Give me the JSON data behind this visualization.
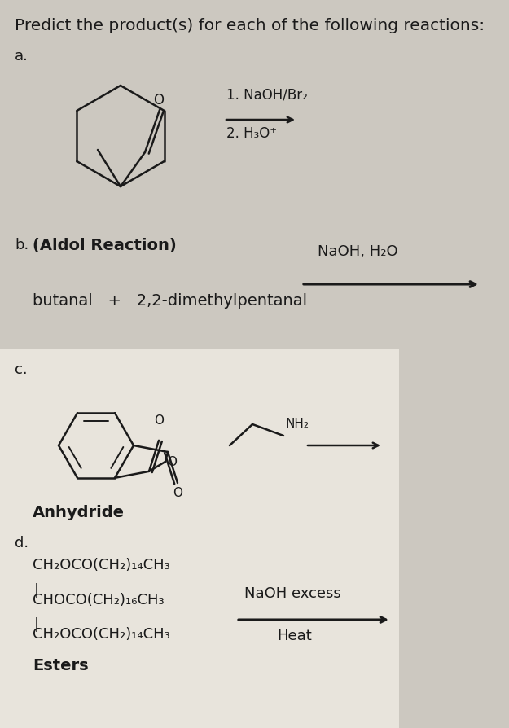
{
  "bg_color": "#c8c4bc",
  "bg_color_top": "#c8c4bc",
  "bg_color_box_c": "#e0dcd4",
  "bg_color_box_d": "#e0dcd4",
  "title": "Predict the product(s) for each of the following reactions:",
  "section_a_label": "a.",
  "section_b_label": "b.",
  "section_c_label": "c.",
  "section_d_label": "d.",
  "reaction_a_line1": "1. NaOH/Br₂",
  "reaction_a_line2": "2. H₃O⁺",
  "reaction_b_header": "(Aldol Reaction)",
  "reaction_b_reactants": "butanal   +   2,2-dimethylpentanal",
  "reaction_b_conditions_top": "NaOH, H₂O",
  "reaction_c_label": "Anhydride",
  "reaction_c_amine": "NH₂",
  "reaction_d_line1": "CH₂OCO(CH₂)₁₄CH₃",
  "reaction_d_line2": "CHOCO(CH₂)₁₆CH₃",
  "reaction_d_line3": "CH₂OCO(CH₂)₁₄CH₃",
  "reaction_d_cond1": "NaOH excess",
  "reaction_d_cond2": "Heat",
  "reaction_d_label": "Esters"
}
